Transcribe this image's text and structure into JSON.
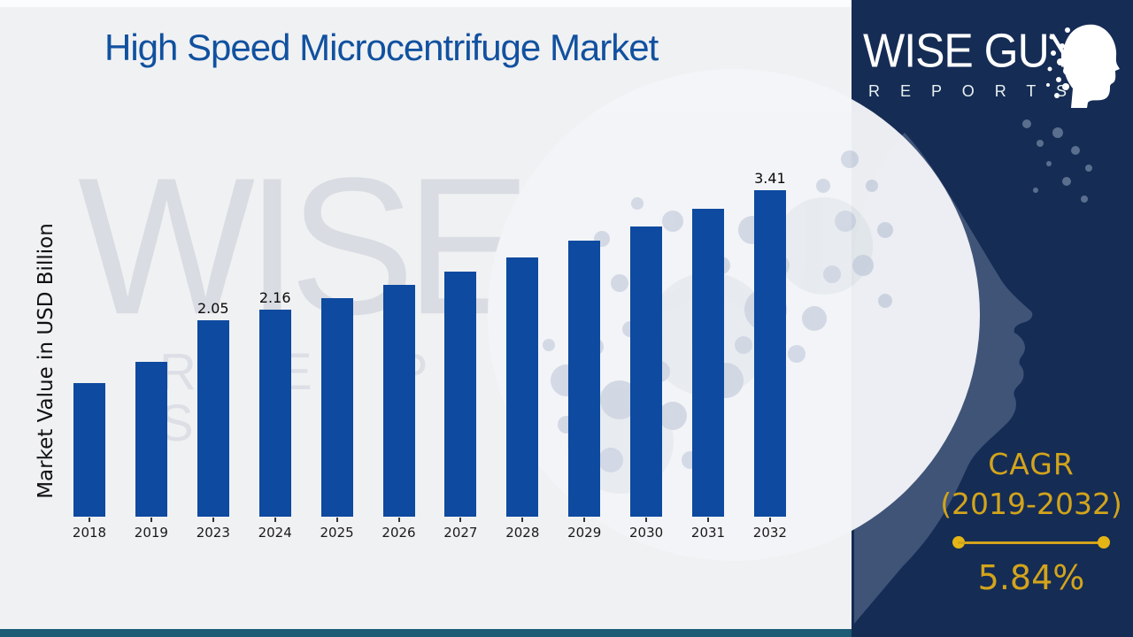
{
  "title": "High Speed Microcentrifuge Market",
  "watermark": {
    "line1": "WISE GUY",
    "line2": "R E P O R T S"
  },
  "brand": {
    "name_line": "WISE GUY",
    "reports_line": "R E P O R T S"
  },
  "cagr": {
    "heading": "CAGR",
    "range": "(2019-2032)",
    "value": "5.84%"
  },
  "chart_data": {
    "type": "bar",
    "title": "High Speed Microcentrifuge Market",
    "xlabel": "",
    "ylabel": "Market Value in USD Billion",
    "categories": [
      "2018",
      "2019",
      "2023",
      "2024",
      "2025",
      "2026",
      "2027",
      "2028",
      "2029",
      "2030",
      "2031",
      "2032"
    ],
    "values": [
      1.4,
      1.62,
      2.05,
      2.16,
      2.28,
      2.42,
      2.56,
      2.71,
      2.88,
      3.03,
      3.22,
      3.41
    ],
    "bar_labels": {
      "2023": "2.05",
      "2024": "2.16",
      "2032": "3.41"
    },
    "ylim": [
      0,
      3.8
    ],
    "grid": false,
    "legend": null,
    "bar_color": "#0d4aa0"
  },
  "colors": {
    "background": "#f0f1f3",
    "panel_navy": "#152c55",
    "bar_blue": "#0d4aa0",
    "title_blue": "#11519f",
    "gold": "#d3a41b",
    "teal_strip": "#1b5b75",
    "watermark_gray": "#d9dce2",
    "face_blue": "#405478",
    "circle_fill": "#f4f5f8",
    "circle_dots": "#cdd5e2"
  }
}
